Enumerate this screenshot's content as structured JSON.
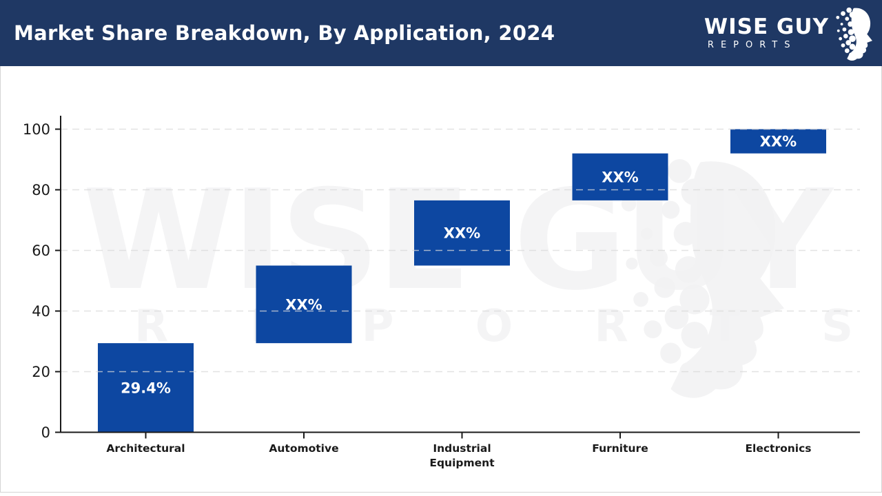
{
  "header": {
    "background": "#1f3864",
    "title": "Market Share Breakdown, By Application, 2024",
    "logo": {
      "line1": "WISE GUY",
      "line2": "REPORTS"
    }
  },
  "watermark": {
    "line1": "WISE GUY",
    "line2": "R E P O R T S"
  },
  "chart_data": {
    "type": "bar",
    "variant": "waterfall",
    "title": "Market Share Breakdown, By Application, 2024",
    "categories": [
      "Architectural",
      "Automotive",
      "Industrial\nEquipment",
      "Furniture",
      "Electronics"
    ],
    "bars": [
      {
        "category": "Architectural",
        "start": 0,
        "end": 29.4,
        "label": "29.4%"
      },
      {
        "category": "Automotive",
        "start": 29.4,
        "end": 55,
        "label": "XX%"
      },
      {
        "category": "Industrial Equipment",
        "start": 55,
        "end": 76.5,
        "label": "XX%"
      },
      {
        "category": "Furniture",
        "start": 76.5,
        "end": 92,
        "label": "XX%"
      },
      {
        "category": "Electronics",
        "start": 92,
        "end": 100,
        "label": "XX%"
      }
    ],
    "xlabel": "",
    "ylabel": "",
    "ylim": [
      0,
      100
    ],
    "yticks": [
      0,
      20,
      40,
      60,
      80,
      100
    ],
    "grid": {
      "horizontal": true,
      "style": "dashed",
      "color": "#d9d9d9"
    },
    "legend": null,
    "bar_color": "#0d47a1",
    "bar_label_color": "#ffffff",
    "axis_color": "#1a1a1a",
    "tick_label_color": "#1a1a1a"
  }
}
